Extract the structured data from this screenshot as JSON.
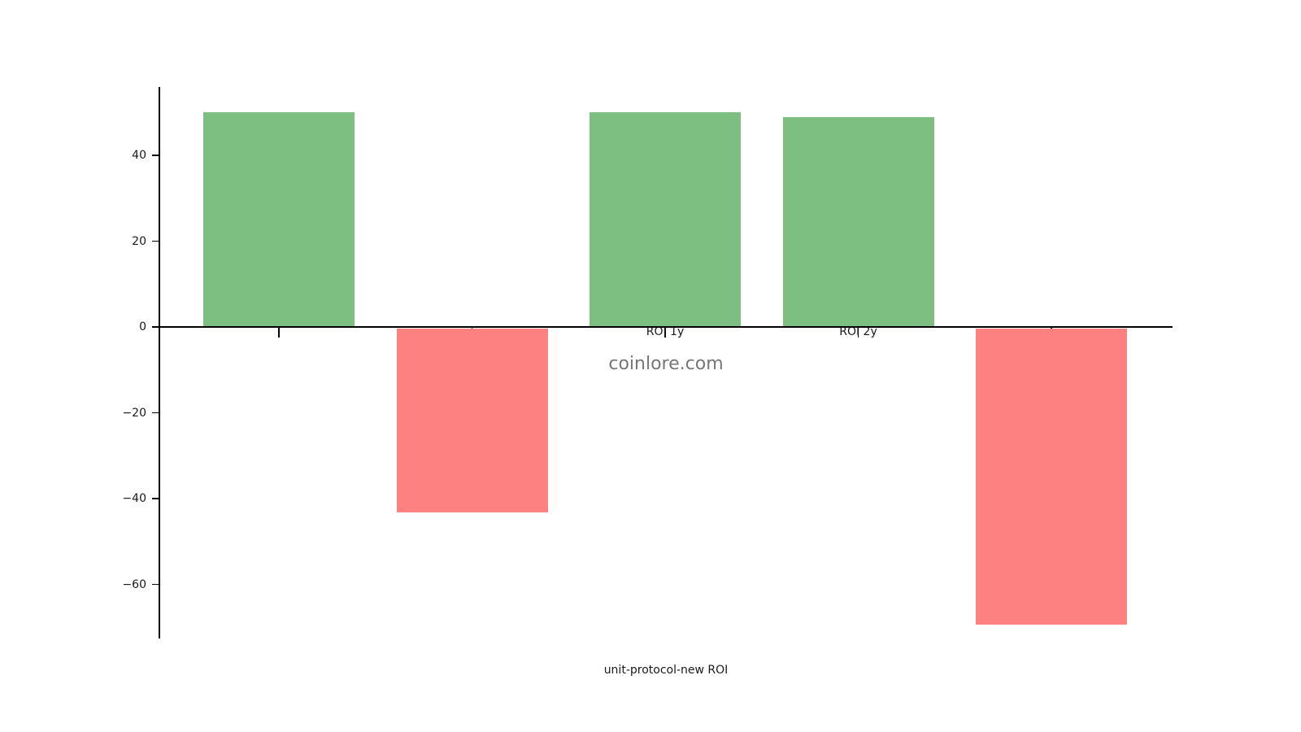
{
  "chart_data": {
    "type": "bar",
    "title": "unit-protocol-new ROI",
    "xlabel": "unit-protocol-new ROI",
    "ylabel": "",
    "categories": [
      "",
      "",
      "ROI 1y",
      "ROI 2y",
      ""
    ],
    "values": [
      50,
      -43,
      50,
      49,
      -69
    ],
    "y_tick_values": [
      40,
      20,
      0,
      -20,
      -40,
      -60
    ],
    "y_tick_labels": [
      "40",
      "20",
      "0",
      "−20",
      "−40",
      "−60"
    ],
    "ylim": [
      -72.6,
      55.9
    ],
    "grid": false,
    "legend": null,
    "positive_color": "#7dbf81",
    "negative_color": "#fd8181",
    "axis_color": "#000000",
    "watermark": "coinlore.com",
    "watermark_color": "#777777"
  }
}
